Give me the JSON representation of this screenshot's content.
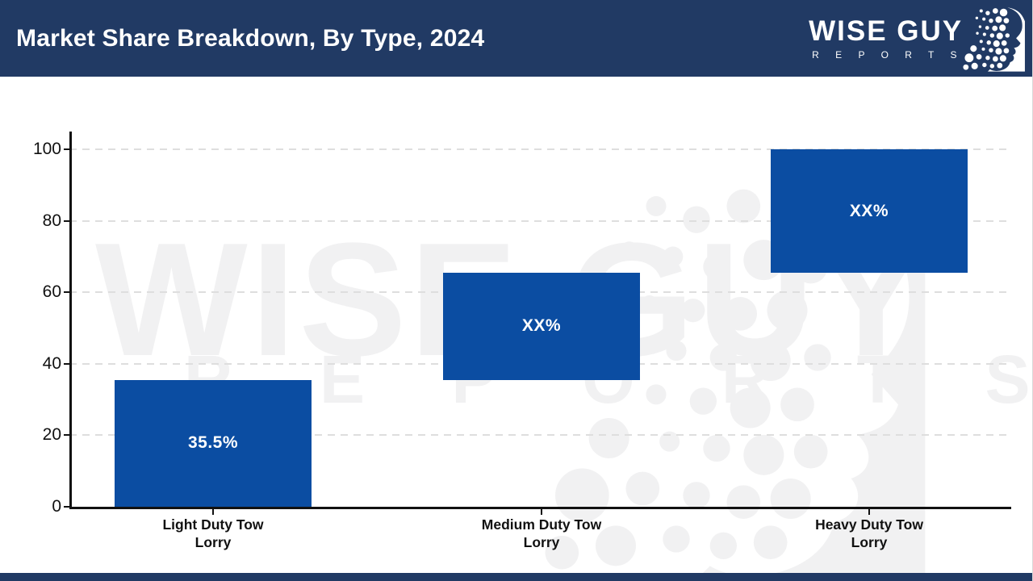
{
  "header": {
    "title": "Market Share Breakdown, By Type, 2024",
    "logo": {
      "line1": "WISE GUY",
      "line2": "R E P O R T S"
    }
  },
  "watermark": {
    "line1": "WISE GUY",
    "line2": "R E P O R T S"
  },
  "colors": {
    "header_bg": "#213A64",
    "bar": "#0B4DA2",
    "grid": "#DEDEDE",
    "axis": "#111111",
    "value_label": "#FFFFFF",
    "watermark": "#F1F1F2"
  },
  "chart_data": {
    "type": "bar",
    "variant": "floating-waterfall",
    "title": "Market Share Breakdown, By Type, 2024",
    "categories": [
      "Light Duty Tow Lorry",
      "Medium Duty Tow Lorry",
      "Heavy Duty Tow Lorry"
    ],
    "category_lines": [
      [
        "Light Duty Tow",
        "Lorry"
      ],
      [
        "Medium Duty Tow",
        "Lorry"
      ],
      [
        "Heavy Duty Tow",
        "Lorry"
      ]
    ],
    "segments": [
      {
        "category": "Light Duty Tow Lorry",
        "start": 0,
        "end": 35.5,
        "label": "35.5%"
      },
      {
        "category": "Medium Duty Tow Lorry",
        "start": 35.5,
        "end": 65.5,
        "label": "XX%"
      },
      {
        "category": "Heavy Duty Tow Lorry",
        "start": 65.5,
        "end": 100,
        "label": "XX%"
      }
    ],
    "ylim": [
      0,
      100
    ],
    "yticks": [
      0,
      20,
      40,
      60,
      80,
      100
    ],
    "grid": "horizontal-dashed",
    "legend": "none",
    "xlabel": "",
    "ylabel": ""
  }
}
